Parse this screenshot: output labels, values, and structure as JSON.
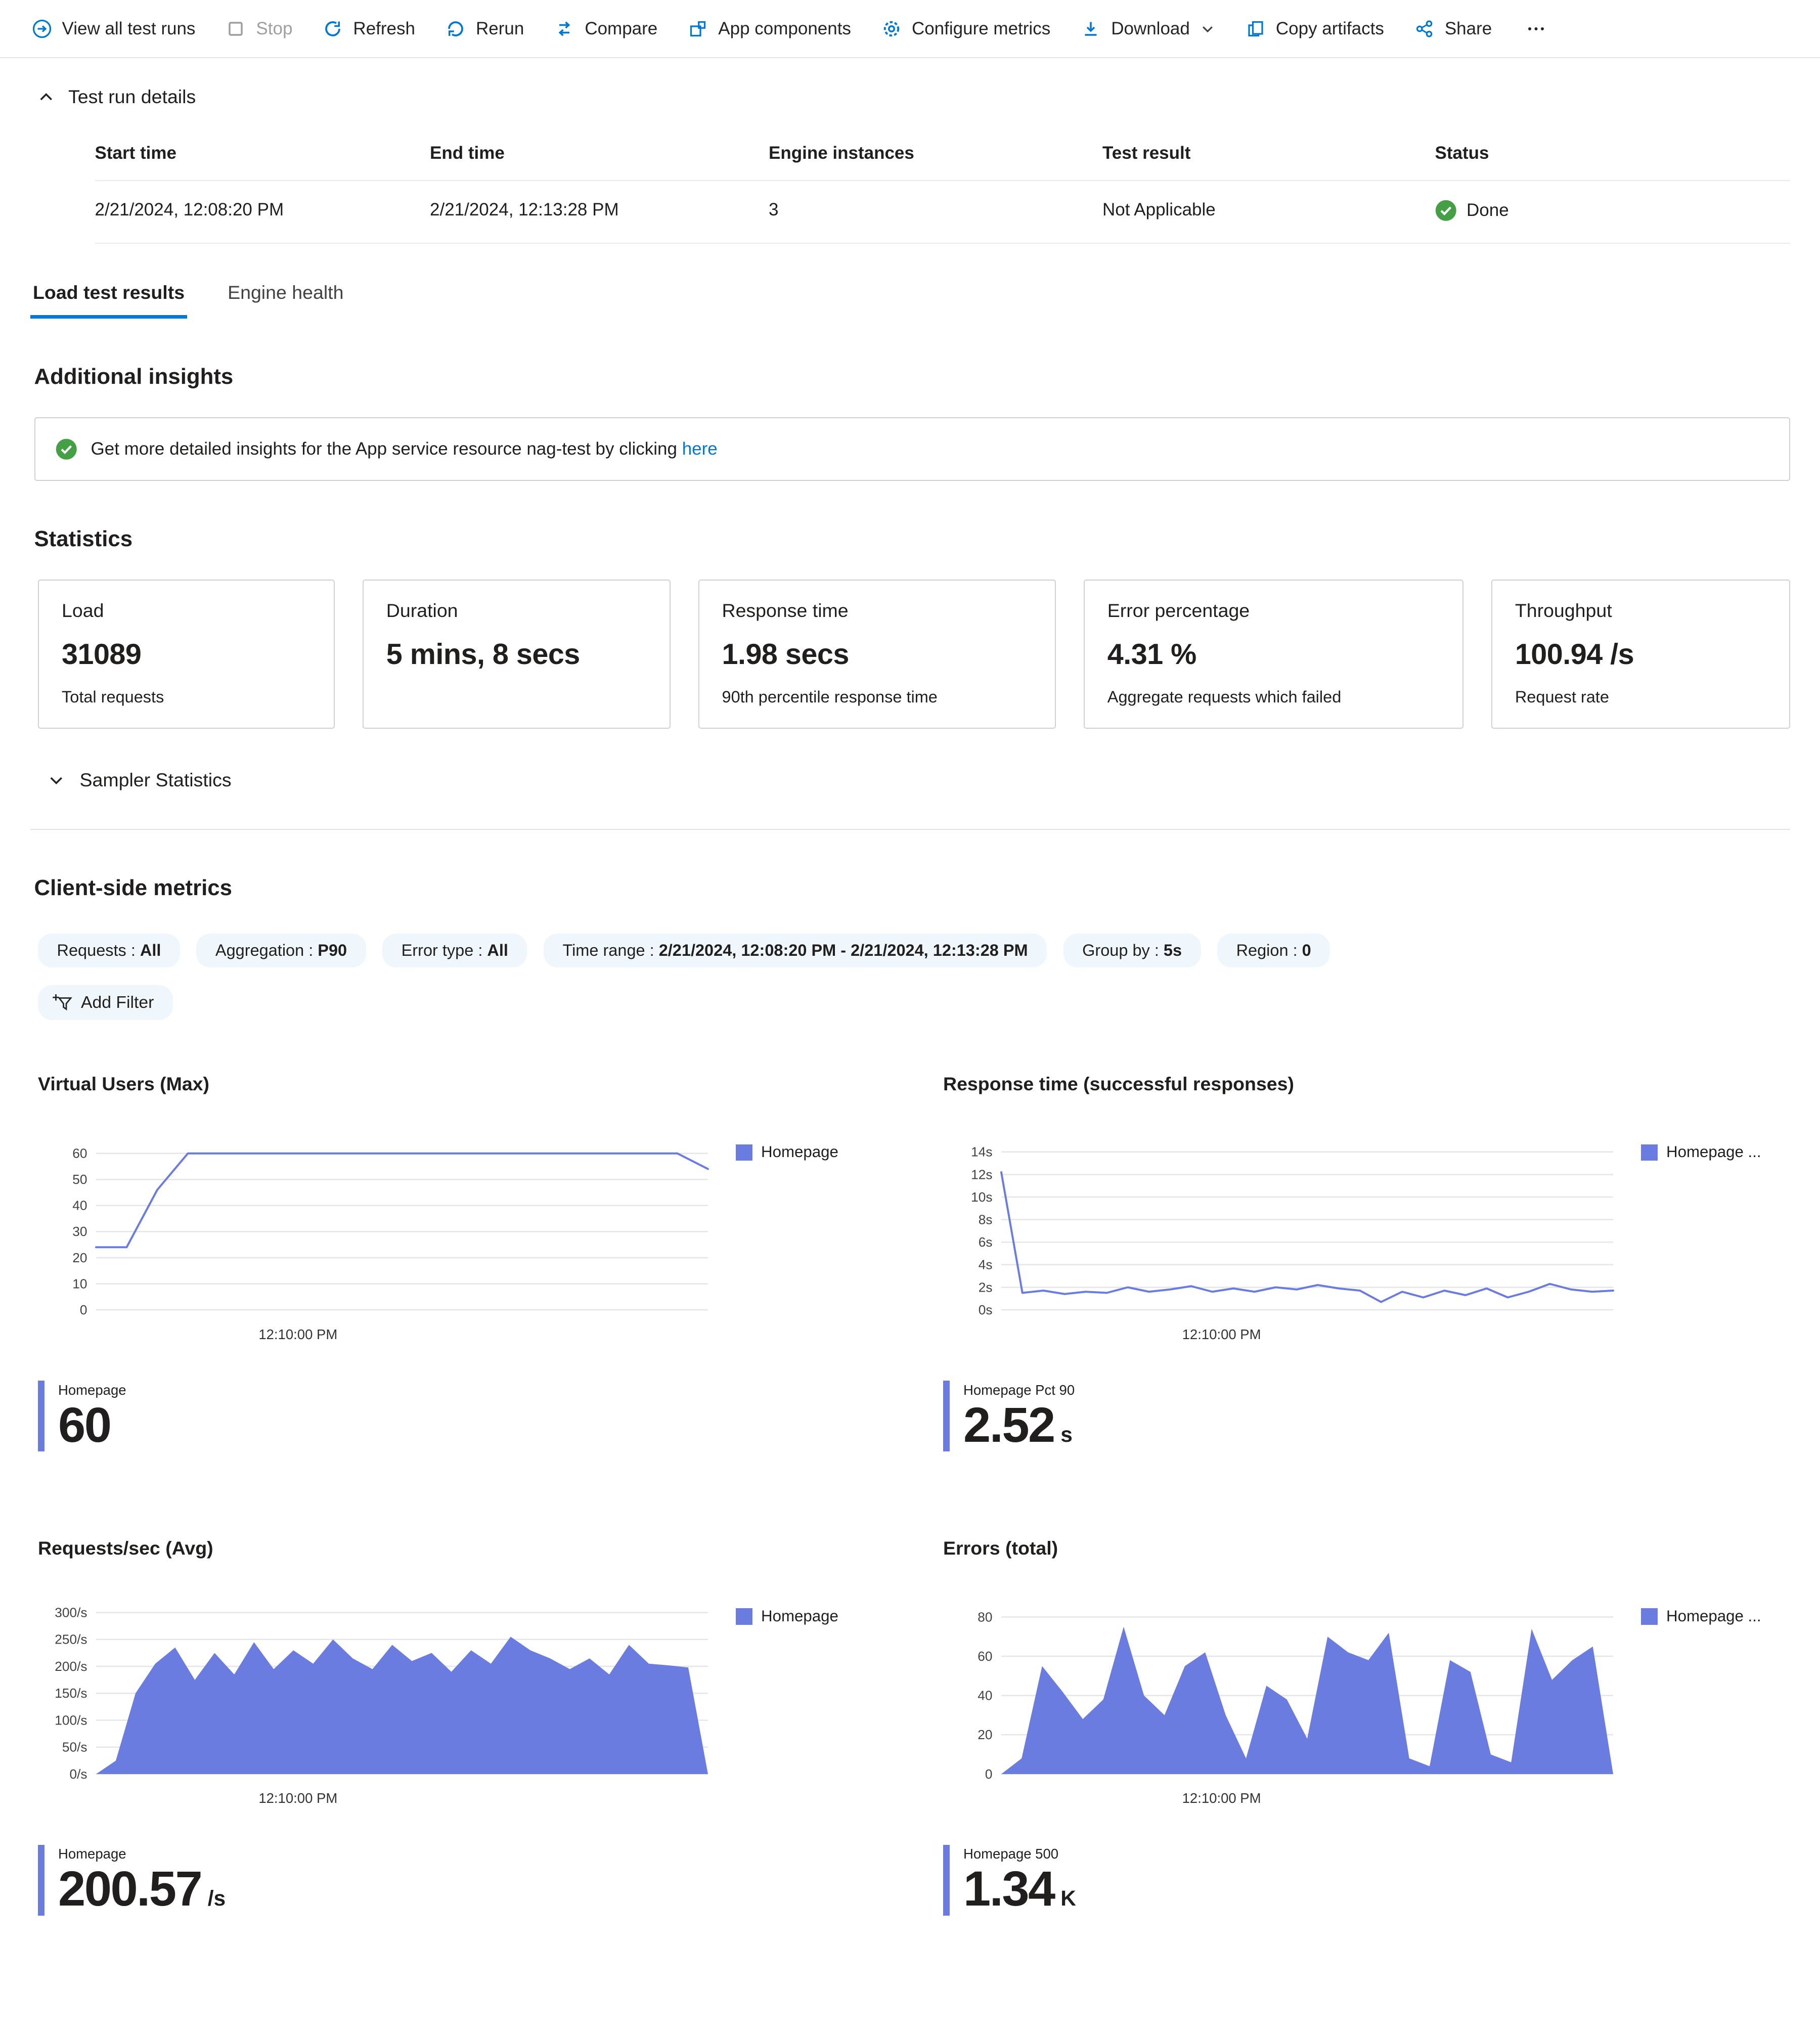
{
  "colors": {
    "accent_blue": "#0078d4",
    "chart_series": "#6b7ce0",
    "success_green": "#45a045",
    "pill_bg": "#eff6fc",
    "disabled_gray": "#a19f9d"
  },
  "toolbar": {
    "items": [
      {
        "label": "View all test runs"
      },
      {
        "label": "Stop",
        "disabled": true
      },
      {
        "label": "Refresh"
      },
      {
        "label": "Rerun"
      },
      {
        "label": "Compare"
      },
      {
        "label": "App components"
      },
      {
        "label": "Configure metrics"
      },
      {
        "label": "Download"
      },
      {
        "label": "Copy artifacts"
      },
      {
        "label": "Share"
      }
    ]
  },
  "test_run_details": {
    "title": "Test run details",
    "columns": [
      "Start time",
      "End time",
      "Engine instances",
      "Test result",
      "Status"
    ],
    "row": {
      "start_time": "2/21/2024, 12:08:20 PM",
      "end_time": "2/21/2024, 12:13:28 PM",
      "engine_instances": "3",
      "test_result": "Not Applicable",
      "status": "Done"
    }
  },
  "tabs": [
    {
      "label": "Load test results",
      "active": true
    },
    {
      "label": "Engine health",
      "active": false
    }
  ],
  "additional_insights": {
    "title": "Additional insights",
    "message": "Get more detailed insights for the App service resource nag-test by clicking",
    "link_text": "here"
  },
  "statistics": {
    "title": "Statistics",
    "cards": [
      {
        "label": "Load",
        "value": "31089",
        "sub": "Total requests"
      },
      {
        "label": "Duration",
        "value": "5 mins, 8 secs",
        "sub": ""
      },
      {
        "label": "Response time",
        "value": "1.98 secs",
        "sub": "90th percentile response time"
      },
      {
        "label": "Error percentage",
        "value": "4.31 %",
        "sub": "Aggregate requests which failed"
      },
      {
        "label": "Throughput",
        "value": "100.94 /s",
        "sub": "Request rate"
      }
    ],
    "sampler_label": "Sampler Statistics"
  },
  "client_side_metrics": {
    "title": "Client-side metrics",
    "filters": [
      {
        "label": "Requests :",
        "value": "All"
      },
      {
        "label": "Aggregation :",
        "value": "P90"
      },
      {
        "label": "Error type :",
        "value": "All"
      },
      {
        "label": "Time range :",
        "value": "2/21/2024, 12:08:20 PM - 2/21/2024, 12:13:28 PM"
      },
      {
        "label": "Group by :",
        "value": "5s"
      },
      {
        "label": "Region :",
        "value": "0"
      }
    ],
    "add_filter_label": "Add Filter"
  },
  "chart_data": [
    {
      "type": "line",
      "title": "Virtual Users (Max)",
      "legend": "Homepage",
      "x_tick_label": "12:10:00 PM",
      "x_tick_pos": 0.33,
      "ylim": [
        0,
        64
      ],
      "y_ticks": [
        {
          "value": 60,
          "label": "60"
        },
        {
          "value": 50,
          "label": "50"
        },
        {
          "value": 40,
          "label": "40"
        },
        {
          "value": 30,
          "label": "30"
        },
        {
          "value": 20,
          "label": "20"
        },
        {
          "value": 10,
          "label": "10"
        },
        {
          "value": 0,
          "label": "0"
        }
      ],
      "values": [
        24,
        24,
        46,
        60,
        60,
        60,
        60,
        60,
        60,
        60,
        60,
        60,
        60,
        60,
        60,
        60,
        60,
        60,
        60,
        60,
        54
      ],
      "stat_label": "Homepage",
      "stat_value": "60",
      "stat_unit": ""
    },
    {
      "type": "line",
      "title": "Response time (successful responses)",
      "legend": "Homepage ...",
      "x_tick_label": "12:10:00 PM",
      "x_tick_pos": 0.36,
      "ylim": [
        0,
        14.8
      ],
      "y_ticks": [
        {
          "value": 14,
          "label": "14s"
        },
        {
          "value": 12,
          "label": "12s"
        },
        {
          "value": 10,
          "label": "10s"
        },
        {
          "value": 8,
          "label": "8s"
        },
        {
          "value": 6,
          "label": "6s"
        },
        {
          "value": 4,
          "label": "4s"
        },
        {
          "value": 2,
          "label": "2s"
        },
        {
          "value": 0,
          "label": "0s"
        }
      ],
      "values": [
        12.2,
        1.5,
        1.7,
        1.4,
        1.6,
        1.5,
        2.0,
        1.6,
        1.8,
        2.1,
        1.6,
        1.9,
        1.6,
        2.0,
        1.8,
        2.2,
        1.9,
        1.7,
        0.7,
        1.6,
        1.1,
        1.7,
        1.3,
        1.9,
        1.1,
        1.6,
        2.3,
        1.8,
        1.6,
        1.7
      ],
      "stat_label": "Homepage Pct 90",
      "stat_value": "2.52",
      "stat_unit": "s"
    },
    {
      "type": "area",
      "title": "Requests/sec (Avg)",
      "legend": "Homepage",
      "x_tick_label": "12:10:00 PM",
      "x_tick_pos": 0.33,
      "ylim": [
        0,
        310
      ],
      "y_ticks": [
        {
          "value": 300,
          "label": "300/s"
        },
        {
          "value": 250,
          "label": "250/s"
        },
        {
          "value": 200,
          "label": "200/s"
        },
        {
          "value": 150,
          "label": "150/s"
        },
        {
          "value": 100,
          "label": "100/s"
        },
        {
          "value": 50,
          "label": "50/s"
        },
        {
          "value": 0,
          "label": "0/s"
        }
      ],
      "values": [
        0,
        25,
        150,
        205,
        235,
        175,
        225,
        185,
        245,
        195,
        230,
        205,
        250,
        215,
        195,
        240,
        210,
        225,
        190,
        230,
        205,
        255,
        230,
        215,
        195,
        215,
        185,
        240,
        205,
        202,
        198,
        0
      ],
      "stat_label": "Homepage",
      "stat_value": "200.57",
      "stat_unit": "/s"
    },
    {
      "type": "area",
      "title": "Errors (total)",
      "legend": "Homepage ...",
      "x_tick_label": "12:10:00 PM",
      "x_tick_pos": 0.36,
      "ylim": [
        0,
        85
      ],
      "y_ticks": [
        {
          "value": 80,
          "label": "80"
        },
        {
          "value": 60,
          "label": "60"
        },
        {
          "value": 40,
          "label": "40"
        },
        {
          "value": 20,
          "label": "20"
        },
        {
          "value": 0,
          "label": "0"
        }
      ],
      "values": [
        0,
        8,
        55,
        42,
        28,
        38,
        75,
        40,
        30,
        55,
        62,
        30,
        8,
        45,
        38,
        18,
        70,
        62,
        58,
        72,
        8,
        4,
        58,
        52,
        10,
        6,
        74,
        48,
        58,
        65,
        0
      ],
      "stat_label": "Homepage 500",
      "stat_value": "1.34",
      "stat_unit": "K"
    }
  ]
}
